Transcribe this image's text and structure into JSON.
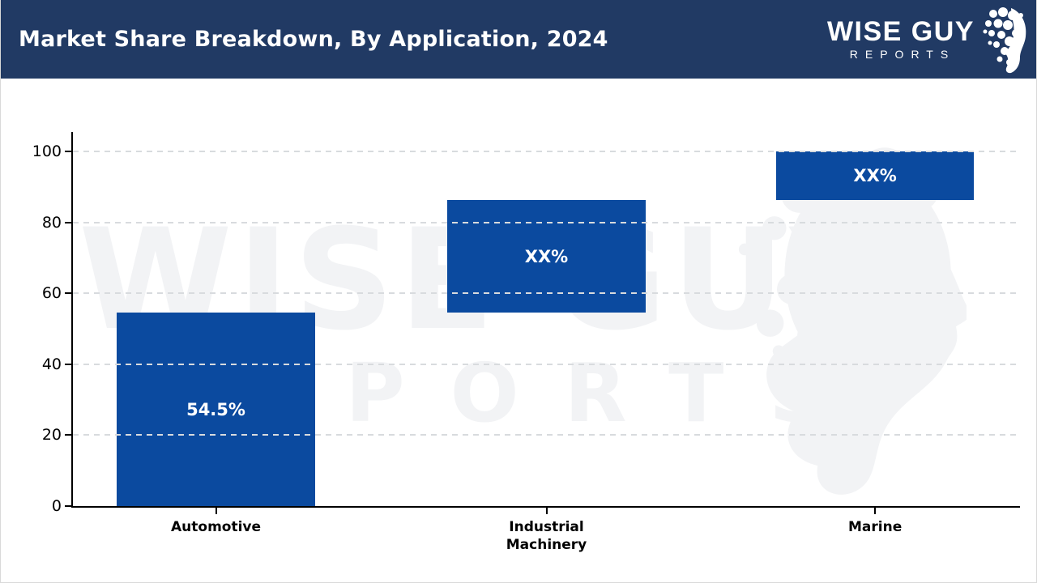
{
  "header": {
    "title": "Market Share Breakdown, By Application, 2024",
    "logo": {
      "primary": "WISE GUY",
      "secondary": "REPORTS",
      "head_icon": "dotted-head-profile"
    }
  },
  "watermark": {
    "primary": "WISE GUY",
    "secondary": "REPORTS",
    "head_icon": "dotted-head-profile"
  },
  "chart_data": {
    "type": "bar",
    "subtype": "waterfall",
    "title": "Market Share Breakdown, By Application, 2024",
    "categories": [
      "Automotive",
      "Industrial Machinery",
      "Marine"
    ],
    "series": [
      {
        "name": "Market share by application",
        "segments": [
          {
            "category": "Automotive",
            "start": 0,
            "end": 54.5,
            "label": "54.5%"
          },
          {
            "category": "Industrial Machinery",
            "start": 54.5,
            "end": 86.4,
            "label": "XX%"
          },
          {
            "category": "Marine",
            "start": 86.4,
            "end": 100,
            "label": "XX%"
          }
        ]
      }
    ],
    "yticks": [
      0,
      20,
      40,
      60,
      80,
      100
    ],
    "ylim": [
      0,
      105.5
    ],
    "xlabel": "",
    "ylabel": "",
    "grid": "horizontal-dashed",
    "legend": "none",
    "colors": {
      "bar": "#0B4A9F",
      "bar_label": "#FFFFFF",
      "grid": "#D8DBDE",
      "axis": "#000000",
      "header_bg": "#213A64",
      "watermark": "#F2F3F5",
      "page_border": "#D9D9D9"
    }
  }
}
